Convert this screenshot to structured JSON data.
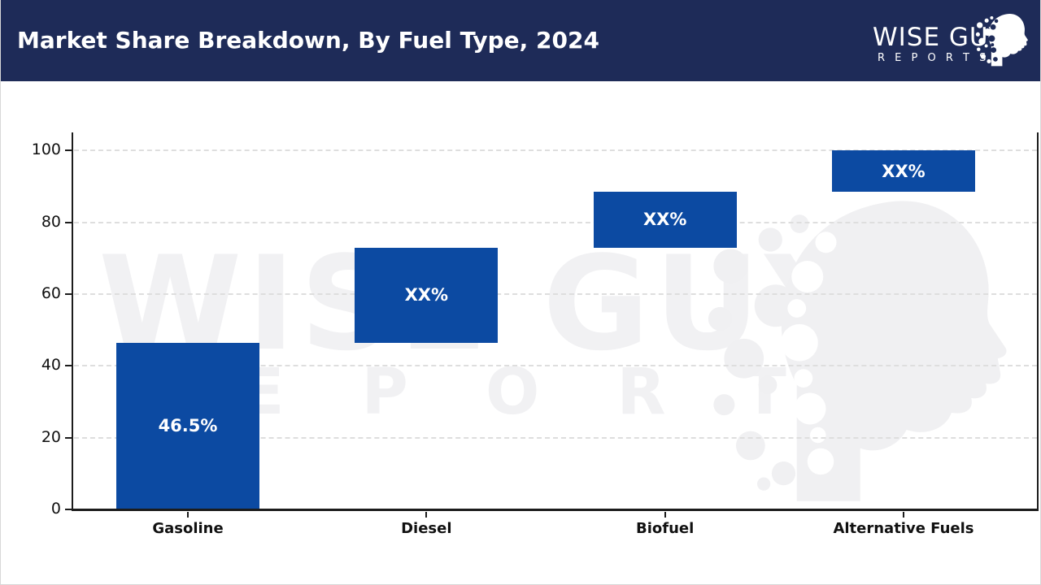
{
  "header": {
    "title": "Market Share Breakdown, By Fuel Type, 2024",
    "logo": {
      "wordmark": "WISE GUY",
      "tagline": "R E P O R T S"
    }
  },
  "watermark": {
    "wordmark": "WISE GUY",
    "tagline": "R E P O R T S"
  },
  "colors": {
    "header_bg": "#1e2b58",
    "bar": "#0c4aa2",
    "bar_label": "#ffffff",
    "grid": "#dedede",
    "axis": "#1c1c1c",
    "watermark": "#f1f1f3"
  },
  "chart_data": {
    "type": "bar",
    "subtype": "waterfall",
    "title": "Market Share Breakdown, By Fuel Type, 2024",
    "categories": [
      "Gasoline",
      "Diesel",
      "Biofuel",
      "Alternative Fuels"
    ],
    "values": [
      46.5,
      26.5,
      15.5,
      11.5
    ],
    "segment_start": [
      0,
      46.5,
      73,
      88.5
    ],
    "segment_end": [
      46.5,
      73,
      88.5,
      100
    ],
    "bar_labels": [
      "46.5%",
      "XX%",
      "XX%",
      "XX%"
    ],
    "xlabel": "",
    "ylabel": "",
    "ylim": [
      0,
      105
    ],
    "yticks": [
      0,
      20,
      40,
      60,
      80,
      100
    ],
    "grid": "horizontal-dashed",
    "legend": "none",
    "bar_color": "#0c4aa2",
    "label_color": "#ffffff"
  }
}
